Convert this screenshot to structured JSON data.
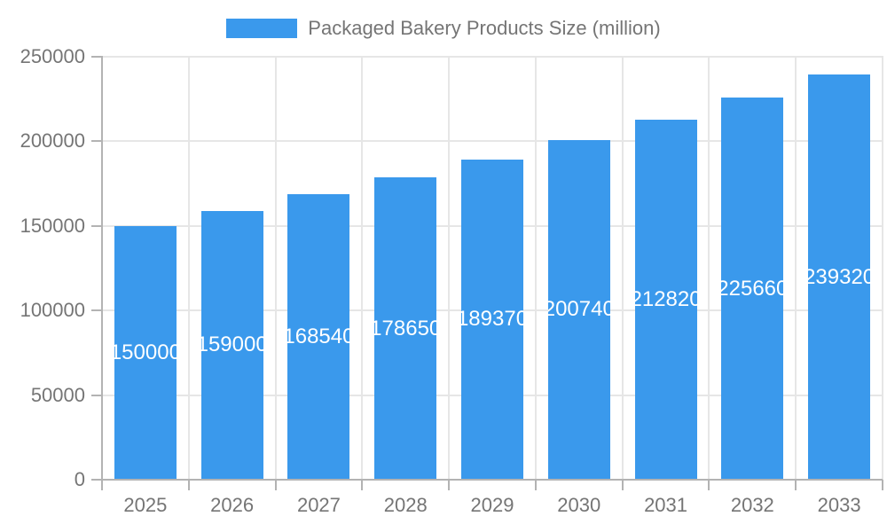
{
  "chart_data": {
    "type": "bar",
    "series_name": "Packaged Bakery Products Size (million)",
    "categories": [
      "2025",
      "2026",
      "2027",
      "2028",
      "2029",
      "2030",
      "2031",
      "2032",
      "2033"
    ],
    "values": [
      150000,
      159000,
      168540,
      178650,
      189370,
      200740,
      212820,
      225660,
      239320
    ],
    "value_labels": [
      "150000",
      "159000",
      "168540",
      "178650",
      "189370",
      "200740",
      "212820",
      "225660",
      "239320"
    ],
    "ytick_labels": [
      "0",
      "50000",
      "100000",
      "150000",
      "200000",
      "250000"
    ],
    "yticks": [
      0,
      50000,
      100000,
      150000,
      200000,
      250000
    ],
    "ylim": [
      0,
      250000
    ],
    "grid": true,
    "legend_position": "top",
    "value_labels_position": "center-of-bar",
    "colors": {
      "bar": "#3A99EC",
      "bar_value_text": "#FFFFFF",
      "axis_text": "#757575",
      "axis_line": "#B3B3B3",
      "gridline": "#E6E6E6",
      "background": "#FFFFFF"
    }
  }
}
